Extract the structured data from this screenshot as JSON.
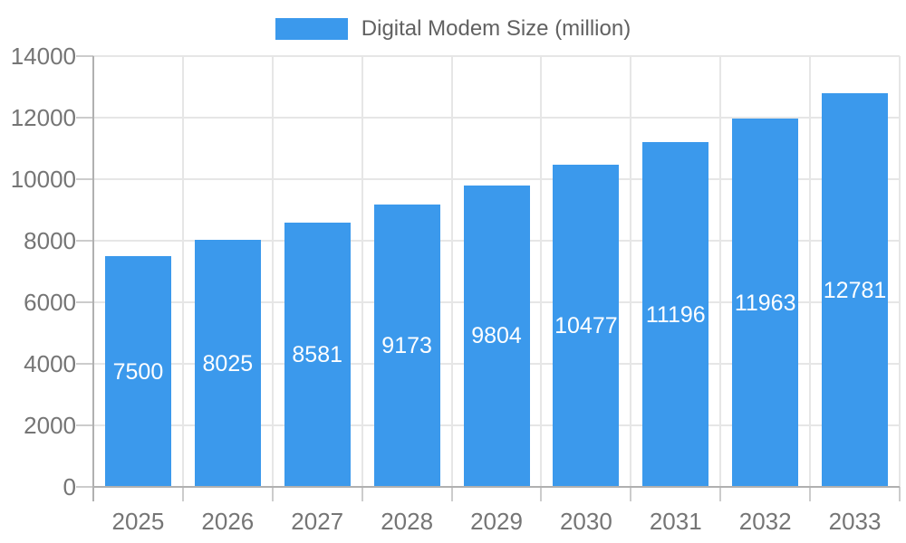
{
  "chart": {
    "legend_label": "Digital Modem Size (million)"
  },
  "chart_data": {
    "type": "bar",
    "title": "",
    "legend_entries": [
      "Digital Modem Size (million)"
    ],
    "legend_position": "top-center",
    "categories": [
      "2025",
      "2026",
      "2027",
      "2028",
      "2029",
      "2030",
      "2031",
      "2032",
      "2033"
    ],
    "series": [
      {
        "name": "Digital Modem Size (million)",
        "values": [
          7500,
          8025,
          8581,
          9173,
          9804,
          10477,
          11196,
          11963,
          12781
        ]
      }
    ],
    "bar_value_labels": [
      "7500",
      "8025",
      "8581",
      "9173",
      "9804",
      "10477",
      "11196",
      "11963",
      "12781"
    ],
    "xlabel": "",
    "ylabel": "",
    "ylim": [
      0,
      14000
    ],
    "ytick_step": 2000,
    "ytick_labels": [
      "0",
      "2000",
      "4000",
      "6000",
      "8000",
      "10000",
      "12000",
      "14000"
    ],
    "grid": true,
    "colors": {
      "bar": "#3B99EC",
      "bar_label": "#FFFFFF",
      "axis_labels": "#757575",
      "legend_text": "#616161",
      "gridline": "#E6E6E6",
      "axis_line": "#B0B0B0",
      "tick": "#CCCCCC"
    }
  }
}
